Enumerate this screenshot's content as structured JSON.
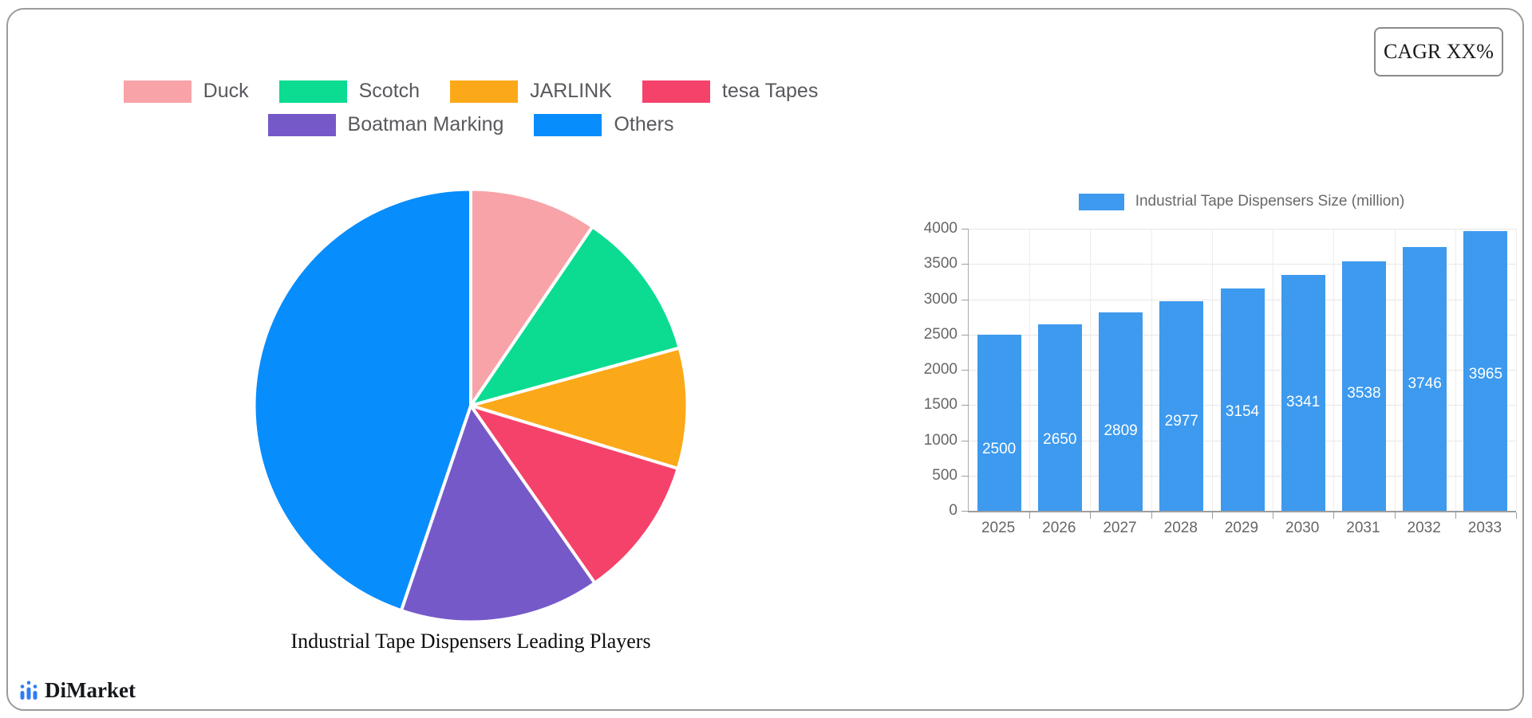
{
  "cagr_badge": {
    "label": "CAGR XX%"
  },
  "logo": {
    "name": "DiMarket",
    "icon": "bar-chart-logo-icon",
    "icon_color": "#2f7cf5",
    "text_color": "#15171c"
  },
  "chart_data": [
    {
      "type": "pie",
      "title": "Industrial Tape Dispensers Leading Players",
      "legend_position": "top",
      "slices": [
        {
          "label": "Duck",
          "percent": 9.5,
          "color": "#F8A3A8"
        },
        {
          "label": "Scotch",
          "percent": 11.2,
          "color": "#0BDC92"
        },
        {
          "label": "JARLINK",
          "percent": 9.0,
          "color": "#FBA919"
        },
        {
          "label": "tesa Tapes",
          "percent": 10.6,
          "color": "#F5426B"
        },
        {
          "label": "Boatman Marking",
          "percent": 14.9,
          "color": "#7659C8"
        },
        {
          "label": "Others",
          "percent": 44.8,
          "color": "#088DFC"
        }
      ],
      "start_angle": "top",
      "direction": "clockwise",
      "slice_border_color": "#ffffff"
    },
    {
      "type": "bar",
      "legend_label": "Industrial Tape Dispensers Size (million)",
      "categories": [
        "2025",
        "2026",
        "2027",
        "2028",
        "2029",
        "2030",
        "2031",
        "2032",
        "2033"
      ],
      "values": [
        2500,
        2650,
        2809,
        2977,
        3154,
        3341,
        3538,
        3746,
        3965
      ],
      "bar_color": "#3D9AEE",
      "ylim": [
        0,
        4000
      ],
      "ytick_step": 500,
      "grid": true,
      "value_label_color": "#ffffff",
      "legend_position": "top"
    }
  ]
}
